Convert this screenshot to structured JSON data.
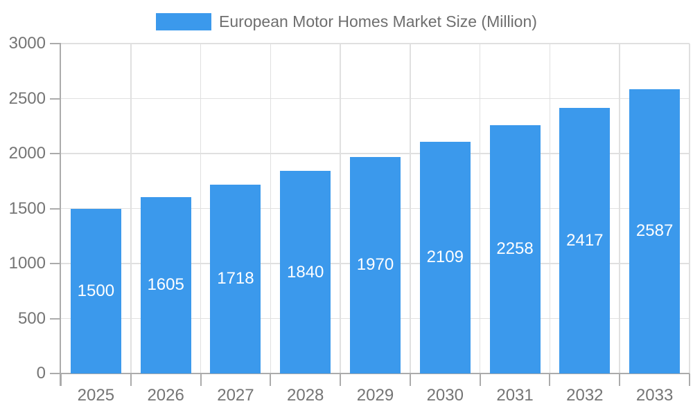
{
  "chart_data": {
    "type": "bar",
    "title": "European Motor Homes Market Size (Million)",
    "categories": [
      "2025",
      "2026",
      "2027",
      "2028",
      "2029",
      "2030",
      "2031",
      "2032",
      "2033"
    ],
    "values": [
      1500,
      1605,
      1718,
      1840,
      1970,
      2109,
      2258,
      2417,
      2587
    ],
    "value_labels": [
      "1500",
      "1605",
      "1718",
      "1840",
      "1970",
      "2109",
      "2258",
      "2417",
      "2587"
    ],
    "ytick_labels": [
      "0",
      "500",
      "1000",
      "1500",
      "2000",
      "2500",
      "3000"
    ],
    "yticks": [
      0,
      500,
      1000,
      1500,
      2000,
      2500,
      3000
    ],
    "ylim": [
      0,
      3000
    ],
    "xlabel": "",
    "ylabel": "",
    "grid": true,
    "legend_position": "top",
    "data_label_position": "inside-center",
    "colors": {
      "bar": "#3B99EC",
      "value_label": "#FFFFFF",
      "axis_label": "#757575",
      "grid_line": "#E0E0E0",
      "axis_line": "#ABABAB",
      "legend_text": "#6E6E6E",
      "background": "#FFFFFF"
    }
  }
}
